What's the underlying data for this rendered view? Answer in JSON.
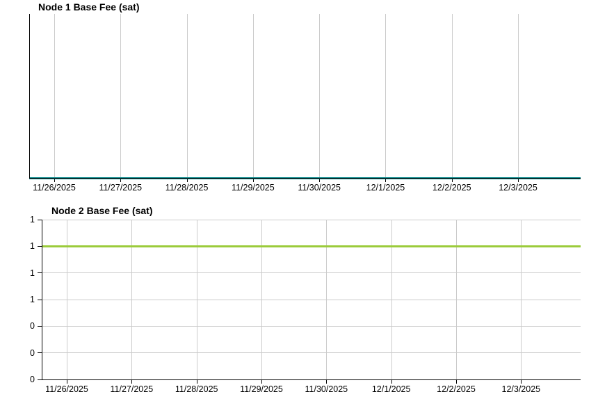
{
  "page": {
    "background": "#ffffff"
  },
  "colors": {
    "axis": "#000000",
    "gridline": "#cbcbcb",
    "text": "#000000",
    "node1_line": "#0e8c8e",
    "node2_line": "#9bcb3b"
  },
  "chart_data": [
    {
      "type": "line",
      "title": "Node 1 Base Fee (sat)",
      "x": [
        "11/26/2025",
        "11/27/2025",
        "11/28/2025",
        "11/29/2025",
        "11/30/2025",
        "12/1/2025",
        "12/2/2025",
        "12/3/2025"
      ],
      "series": [
        {
          "name": "Node 1 Base Fee (sat)",
          "values": [
            0,
            0,
            0,
            0,
            0,
            0,
            0,
            0
          ],
          "color": "#0e8c8e"
        }
      ],
      "xlabel": "",
      "ylabel": "",
      "ylim": [
        0,
        1
      ],
      "y_ticks": [],
      "y_tick_labels": [],
      "grid": "vertical-only",
      "legend": "none"
    },
    {
      "type": "line",
      "title": "Node 2 Base Fee (sat)",
      "x": [
        "11/26/2025",
        "11/27/2025",
        "11/28/2025",
        "11/29/2025",
        "11/30/2025",
        "12/1/2025",
        "12/2/2025",
        "12/3/2025"
      ],
      "series": [
        {
          "name": "Node 2 Base Fee (sat)",
          "values": [
            1,
            1,
            1,
            1,
            1,
            1,
            1,
            1
          ],
          "color": "#9bcb3b"
        }
      ],
      "xlabel": "",
      "ylabel": "",
      "ylim": [
        0,
        1.2
      ],
      "y_ticks": [
        1.2,
        1.0,
        0.8,
        0.6,
        0.4,
        0.2,
        0.0
      ],
      "y_tick_labels": [
        "1",
        "1",
        "1",
        "1",
        "0",
        "0",
        "0"
      ],
      "grid": "both",
      "legend": "none"
    }
  ]
}
